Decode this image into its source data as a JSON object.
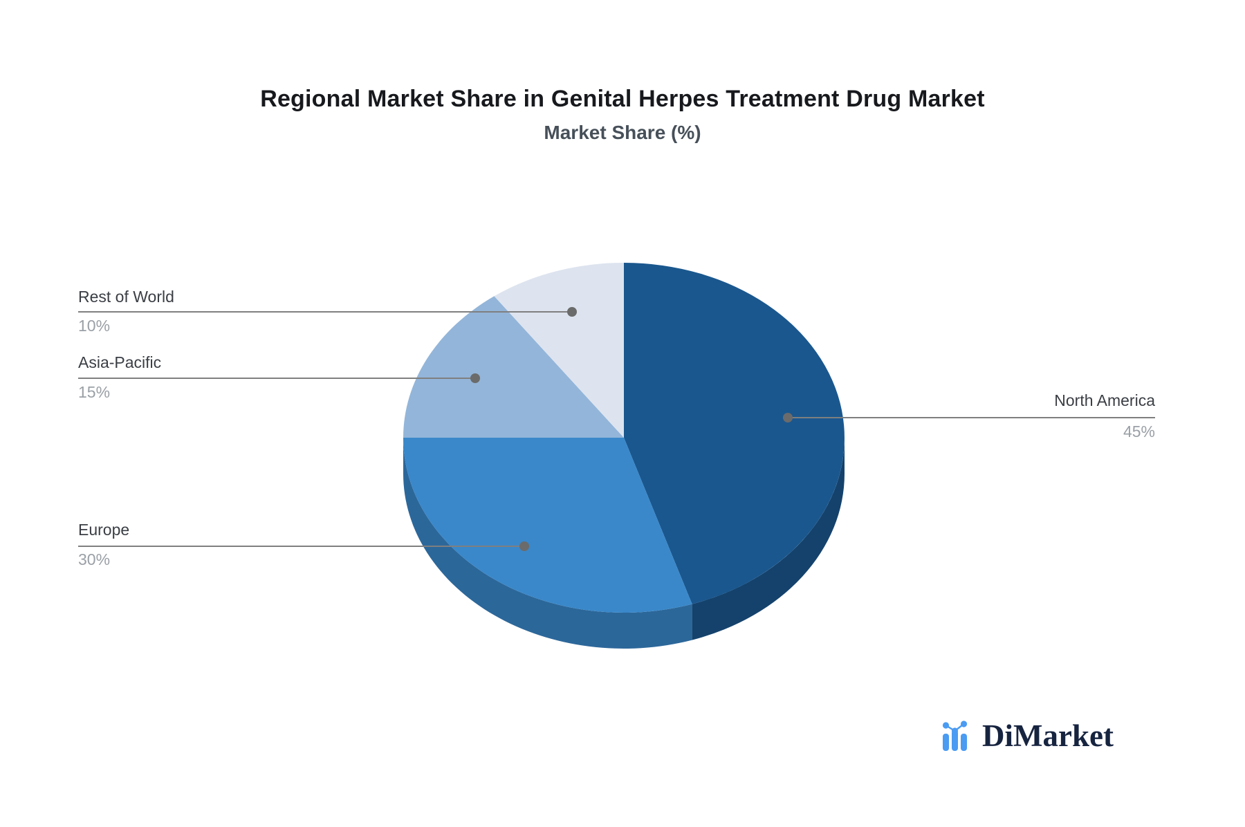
{
  "title": "Regional Market Share in Genital Herpes Treatment Drug Market",
  "subtitle": "Market Share (%)",
  "brand": {
    "name": "DiMarket",
    "icon": "bar-line-chart-icon",
    "icon_color": "#4a9bf2",
    "text_color": "#172440"
  },
  "chart_data": {
    "type": "pie",
    "title": "Regional Market Share in Genital Herpes Treatment Drug Market",
    "subtitle": "Market Share (%)",
    "unit": "%",
    "style": "3d-pie",
    "start_angle": "12-o-clock",
    "direction": "clockwise",
    "legend_position": "outside-leader-lines",
    "slices": [
      {
        "label": "North America",
        "value": 45,
        "display": "45%",
        "color": "#1a578e"
      },
      {
        "label": "Europe",
        "value": 30,
        "display": "30%",
        "color": "#3a88ca"
      },
      {
        "label": "Asia-Pacific",
        "value": 15,
        "display": "15%",
        "color": "#93b5d9"
      },
      {
        "label": "Rest of World",
        "value": 10,
        "display": "10%",
        "color": "#dde4ef"
      }
    ],
    "leader_line_color": "#7f7f7f",
    "leader_dot_color": "#6b6b6b",
    "label_color": "#3a3e44",
    "value_color": "#9aa0a6"
  }
}
